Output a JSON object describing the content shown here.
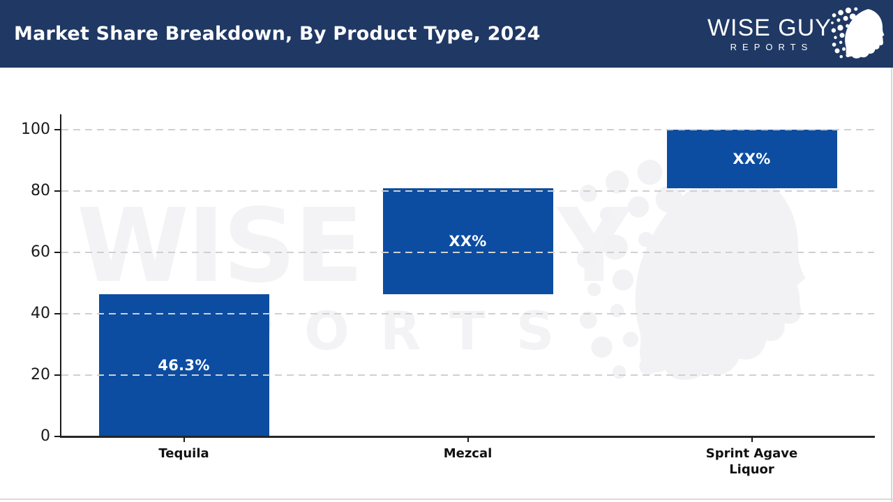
{
  "header": {
    "title": "Market Share Breakdown, By Product Type, 2024",
    "logo": {
      "line1": "WISE GUY",
      "line2": "REPORTS"
    }
  },
  "watermark": {
    "line1": "WISE GUY",
    "line2": "REPORTS"
  },
  "chart_data": {
    "type": "bar",
    "subtype": "waterfall-stacked-to-100",
    "title": "Market Share Breakdown, By Product Type, 2024",
    "categories": [
      "Tequila",
      "Mezcal",
      "Sprint Agave Liquor"
    ],
    "segments": [
      {
        "category": "Tequila",
        "start": 0,
        "end": 46.3,
        "label": "46.3%"
      },
      {
        "category": "Mezcal",
        "start": 46.3,
        "end": 81,
        "label": "XX%"
      },
      {
        "category": "Sprint Agave Liquor",
        "start": 81,
        "end": 100,
        "label": "XX%"
      }
    ],
    "bar_labels": [
      "46.3%",
      "XX%",
      "XX%"
    ],
    "yticks": [
      0,
      20,
      40,
      60,
      80,
      100
    ],
    "ylim": [
      0,
      105
    ],
    "xlabel": "",
    "ylabel": "",
    "grid": "horizontal-dashed",
    "legend": "none",
    "bar_color": "#0c4da2",
    "bar_label_color": "#ffffff"
  },
  "colors": {
    "header_bg": "#1f3864",
    "bar": "#0c4da2",
    "axis": "#1a1a1a",
    "gridline": "#d0d0d0",
    "watermark": "#f3f3f5",
    "title_text": "#ffffff",
    "frame_line": "#d9d9d9"
  }
}
